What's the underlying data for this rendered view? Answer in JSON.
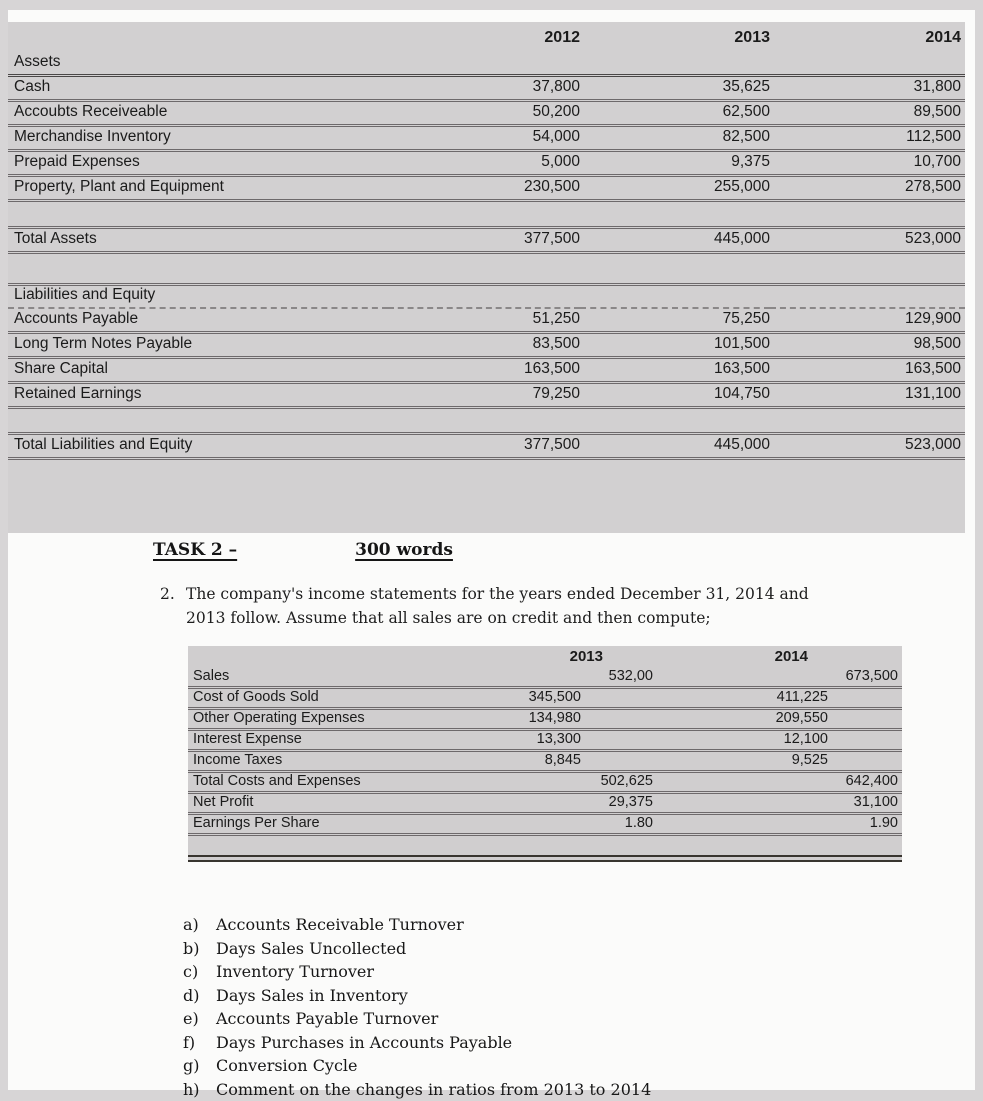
{
  "colors": {
    "frame_bg": "#d7d5d6",
    "page_bg": "#fbfbfa",
    "table_bg": "#d2d0d1",
    "text": "#1b1b1b"
  },
  "balance_sheet": {
    "years": [
      "2012",
      "2013",
      "2014"
    ],
    "rows": [
      {
        "label": "Assets",
        "values": [
          "",
          "",
          ""
        ]
      },
      {
        "label": "Cash",
        "values": [
          "37,800",
          "35,625",
          "31,800"
        ]
      },
      {
        "label": "Accoubts Receiveable",
        "values": [
          "50,200",
          "62,500",
          "89,500"
        ]
      },
      {
        "label": "Merchandise Inventory",
        "values": [
          "54,000",
          "82,500",
          "112,500"
        ]
      },
      {
        "label": "Prepaid Expenses",
        "values": [
          "5,000",
          "9,375",
          "10,700"
        ]
      },
      {
        "label": "Property, Plant and Equipment",
        "values": [
          "230,500",
          "255,000",
          "278,500"
        ]
      },
      {
        "label": "",
        "values": [
          "",
          "",
          ""
        ]
      },
      {
        "label": "Total Assets",
        "values": [
          "377,500",
          "445,000",
          "523,000"
        ]
      },
      {
        "label": "",
        "values": [
          "",
          "",
          ""
        ]
      },
      {
        "label": "Liabilities and Equity",
        "values": [
          "",
          "",
          ""
        ]
      },
      {
        "label": "Accounts Payable",
        "values": [
          "51,250",
          "75,250",
          "129,900"
        ]
      },
      {
        "label": "Long Term Notes Payable",
        "values": [
          "83,500",
          "101,500",
          "98,500"
        ]
      },
      {
        "label": "Share Capital",
        "values": [
          "163,500",
          "163,500",
          "163,500"
        ]
      },
      {
        "label": "Retained Earnings",
        "values": [
          "79,250",
          "104,750",
          "131,100"
        ]
      },
      {
        "label": "",
        "values": [
          "",
          "",
          ""
        ]
      },
      {
        "label": "Total Liabilities and Equity",
        "values": [
          "377,500",
          "445,000",
          "523,000"
        ]
      }
    ]
  },
  "task": {
    "heading_title": "TASK 2 –",
    "heading_words": "300 words",
    "item_number": "2.",
    "item_line1": "The company's income statements for the years ended December 31, 2014 and",
    "item_line2": "2013 follow. Assume that all sales are on credit and then compute;"
  },
  "income_statement": {
    "years": [
      "2013",
      "2014"
    ],
    "rows": [
      {
        "label": "Sales",
        "cells": [
          "",
          "532,00",
          "",
          "673,500"
        ]
      },
      {
        "label": "Cost of Goods Sold",
        "cells": [
          "345,500",
          "",
          "411,225",
          ""
        ]
      },
      {
        "label": "Other Operating Expenses",
        "cells": [
          "134,980",
          "",
          "209,550",
          ""
        ]
      },
      {
        "label": "Interest Expense",
        "cells": [
          "13,300",
          "",
          "12,100",
          ""
        ]
      },
      {
        "label": "Income Taxes",
        "cells": [
          "8,845",
          "",
          "9,525",
          ""
        ]
      },
      {
        "label": "Total Costs and Expenses",
        "cells": [
          "",
          "502,625",
          "",
          "642,400"
        ]
      },
      {
        "label": "Net Profit",
        "cells": [
          "",
          "29,375",
          "",
          "31,100"
        ]
      },
      {
        "label": "Earnings Per Share",
        "cells": [
          "",
          "1.80",
          "",
          "1.90"
        ]
      },
      {
        "label": "",
        "cells": [
          "",
          "",
          "",
          ""
        ]
      }
    ]
  },
  "questions": [
    {
      "letter": "a)",
      "text": "Accounts Receivable Turnover"
    },
    {
      "letter": "b)",
      "text": "Days Sales Uncollected"
    },
    {
      "letter": "c)",
      "text": "Inventory Turnover"
    },
    {
      "letter": "d)",
      "text": "Days Sales in Inventory"
    },
    {
      "letter": "e)",
      "text": "Accounts Payable Turnover"
    },
    {
      "letter": "f)",
      "text": "Days Purchases in Accounts Payable"
    },
    {
      "letter": "g)",
      "text": "Conversion Cycle"
    },
    {
      "letter": "h)",
      "text": "Comment on the changes in ratios from 2013 to 2014"
    }
  ]
}
